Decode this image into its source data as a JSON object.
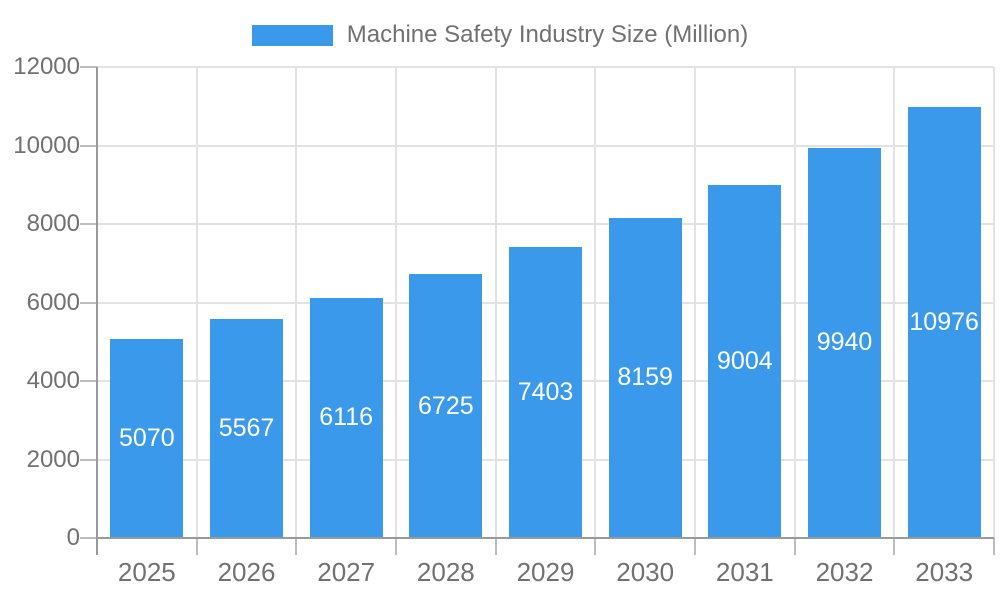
{
  "chart_data": {
    "type": "bar",
    "title": "Machine Safety Industry Size (Million)",
    "series": [
      {
        "name": "Machine Safety Industry Size (Million)",
        "values": [
          5070,
          5567,
          6116,
          6725,
          7403,
          8159,
          9004,
          9940,
          10976
        ]
      }
    ],
    "categories": [
      "2025",
      "2026",
      "2027",
      "2028",
      "2029",
      "2030",
      "2031",
      "2032",
      "2033"
    ],
    "bar_labels": [
      "5070",
      "5567",
      "6116",
      "6725",
      "7403",
      "8159",
      "9004",
      "9940",
      "10976"
    ],
    "xlabel": "",
    "ylabel": "",
    "ylim": [
      0,
      12000
    ],
    "yticks": [
      0,
      2000,
      4000,
      6000,
      8000,
      10000,
      12000
    ],
    "ytick_labels": [
      "0",
      "2000",
      "4000",
      "6000",
      "8000",
      "10000",
      "12000"
    ],
    "grid": "on",
    "legend_position": "top-center",
    "colors": {
      "bar": "#3B99EC",
      "bar_value_text": "#FFFFFF",
      "gridline": "#E2E2E2",
      "axis_line": "#9A9A9A",
      "tick_mark": "#BDBDBD",
      "axis_text": "#717171",
      "background": "#FFFFFF"
    }
  }
}
